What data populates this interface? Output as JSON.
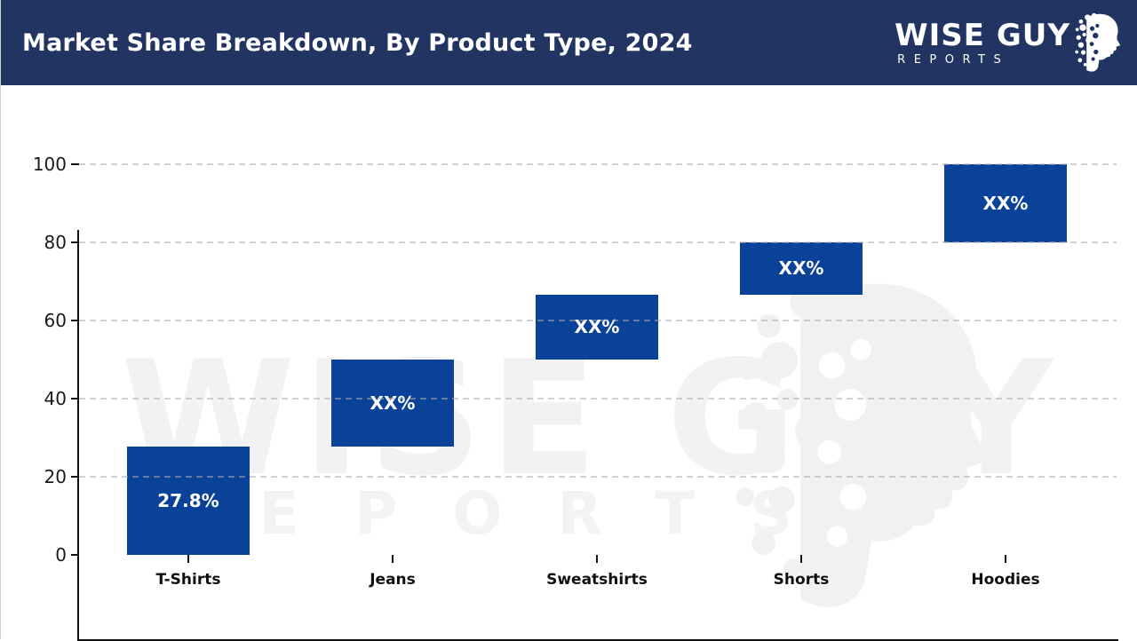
{
  "header": {
    "title": "Market Share Breakdown, By Product Type, 2024",
    "logo": {
      "name": "WISE GUY",
      "subtitle": "REPORTS"
    }
  },
  "watermark": {
    "line1": "WISE GUY",
    "line2": "REPORTS"
  },
  "colors": {
    "header_bg": "#213462",
    "bar": "#0a4299",
    "axis": "#111111",
    "gridline_rgba": "rgba(172,172,172,0.55)",
    "watermark": "#f1f1f3",
    "bar_label": "#ffffff"
  },
  "chart_data": {
    "type": "bar",
    "subtype": "waterfall-floating-bars",
    "title": "Market Share Breakdown, By Product Type, 2024",
    "categories": [
      "T-Shirts",
      "Jeans",
      "Sweatshirts",
      "Shorts",
      "Hoodies"
    ],
    "bars": [
      {
        "category": "T-Shirts",
        "start": 0,
        "end": 27.8,
        "label": "27.8%"
      },
      {
        "category": "Jeans",
        "start": 27.8,
        "end": 50.0,
        "label": "XX%"
      },
      {
        "category": "Sweatshirts",
        "start": 50.0,
        "end": 66.7,
        "label": "XX%"
      },
      {
        "category": "Shorts",
        "start": 66.7,
        "end": 80.0,
        "label": "XX%"
      },
      {
        "category": "Hoodies",
        "start": 80.0,
        "end": 100.0,
        "label": "XX%"
      }
    ],
    "xlabel": "",
    "ylabel": "",
    "yticks": [
      0,
      20,
      40,
      60,
      80,
      100
    ],
    "ylim": [
      0,
      105
    ],
    "grid": "horizontal-dashed",
    "legend": "none",
    "bar_color": "#0a4299"
  }
}
